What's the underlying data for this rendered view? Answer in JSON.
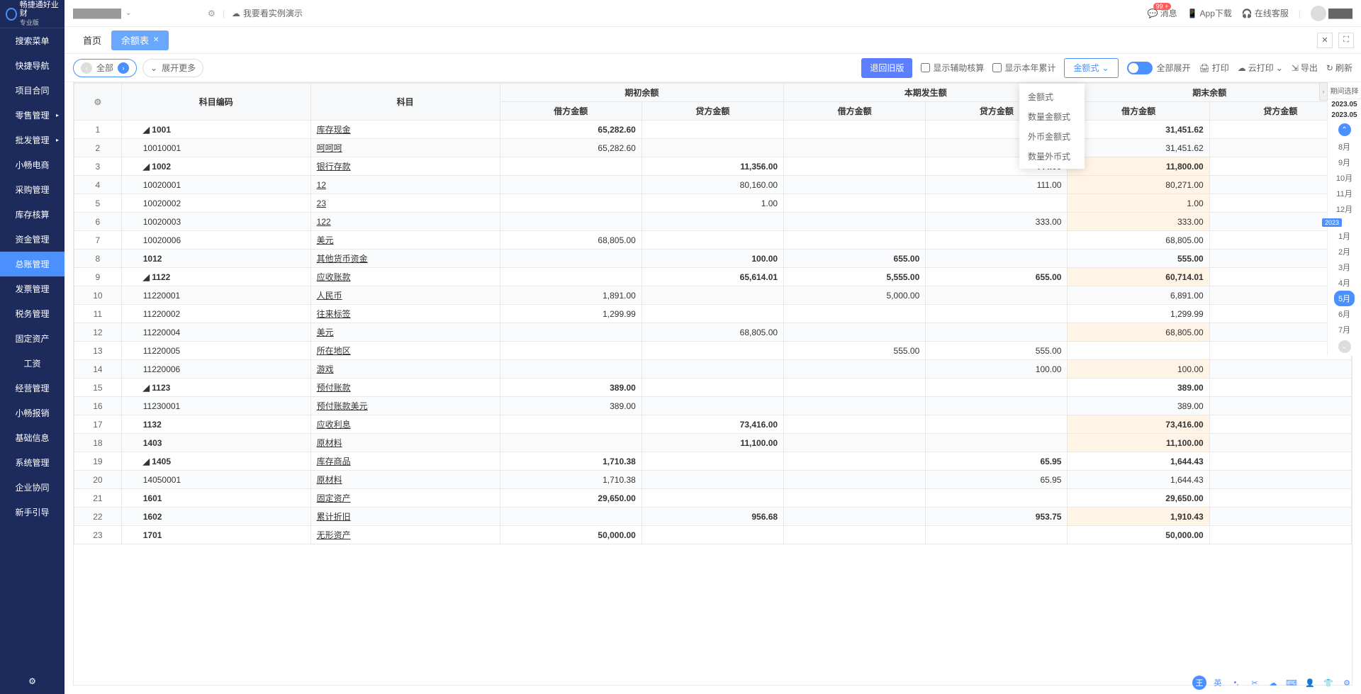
{
  "brand": {
    "name": "畅捷通好业财",
    "edition": "专业版"
  },
  "sidebar": {
    "items": [
      {
        "label": "搜索菜单"
      },
      {
        "label": "快捷导航"
      },
      {
        "label": "项目合同"
      },
      {
        "label": "零售管理",
        "caret": true
      },
      {
        "label": "批发管理",
        "caret": true
      },
      {
        "label": "小畅电商"
      },
      {
        "label": "采购管理"
      },
      {
        "label": "库存核算"
      },
      {
        "label": "资金管理"
      },
      {
        "label": "总账管理",
        "active": true
      },
      {
        "label": "发票管理"
      },
      {
        "label": "税务管理"
      },
      {
        "label": "固定资产"
      },
      {
        "label": "工资"
      },
      {
        "label": "经营管理"
      },
      {
        "label": "小畅报销"
      },
      {
        "label": "基础信息"
      },
      {
        "label": "系统管理"
      },
      {
        "label": "企业协同"
      },
      {
        "label": "新手引导"
      }
    ]
  },
  "topbar": {
    "company": "████████",
    "demo": "我要看实例演示",
    "msg": "消息",
    "msg_badge": "99 +",
    "download": "App下载",
    "service": "在线客服",
    "user": "████"
  },
  "tabs": {
    "home": "首页",
    "active": "余额表"
  },
  "toolbar": {
    "filter": "全部",
    "expand": "展开更多",
    "back": "退回旧版",
    "chk1": "显示辅助核算",
    "chk2": "显示本年累计",
    "mode": "金额式",
    "expand_all": "全部展开",
    "print": "打印",
    "cloud_print": "云打印",
    "export": "导出",
    "refresh": "刷新"
  },
  "dropdown": {
    "items": [
      "金额式",
      "数量金额式",
      "外币金额式",
      "数量外币式"
    ]
  },
  "period": {
    "title": "期间选择",
    "from": "2023.05",
    "to": "2023.05",
    "year_label": "2023",
    "months": [
      "8月",
      "9月",
      "10月",
      "11月",
      "12月",
      "1月",
      "2月",
      "3月",
      "4月",
      "5月",
      "6月",
      "7月"
    ],
    "active_month": "5月"
  },
  "table": {
    "headers": {
      "code": "科目编码",
      "name": "科目",
      "g1": "期初余额",
      "g2": "本期发生额",
      "g3": "期末余额",
      "debit": "借方金额",
      "credit": "贷方金额"
    },
    "rows": [
      {
        "i": 1,
        "code": "1001",
        "name": "库存现金",
        "exp": true,
        "bold": true,
        "d1": "65,282.60",
        "c2": "33,830.98",
        "d3": "31,451.62"
      },
      {
        "i": 2,
        "code": "10010001",
        "name": "呵呵呵",
        "d1": "65,282.60",
        "c2": "33,830.98",
        "d3": "31,451.62"
      },
      {
        "i": 3,
        "code": "1002",
        "name": "银行存款",
        "exp": true,
        "bold": true,
        "c1": "11,356.00",
        "c2": "444.00",
        "d3h": "11,800.00"
      },
      {
        "i": 4,
        "code": "10020001",
        "name": "12",
        "c1": "80,160.00",
        "c2": "111.00",
        "d3h": "80,271.00"
      },
      {
        "i": 5,
        "code": "10020002",
        "name": "23",
        "c1": "1.00",
        "d3h": "1.00"
      },
      {
        "i": 6,
        "code": "10020003",
        "name": "122",
        "c2": "333.00",
        "d3h": "333.00"
      },
      {
        "i": 7,
        "code": "10020006",
        "name": "美元",
        "d1": "68,805.00",
        "d3": "68,805.00"
      },
      {
        "i": 8,
        "code": "1012",
        "name": "其他货币资金",
        "bold": true,
        "c1": "100.00",
        "d2": "655.00",
        "d3": "555.00"
      },
      {
        "i": 9,
        "code": "1122",
        "name": "应收账款",
        "exp": true,
        "bold": true,
        "c1": "65,614.01",
        "d2": "5,555.00",
        "c2": "655.00",
        "d3h": "60,714.01"
      },
      {
        "i": 10,
        "code": "11220001",
        "name": "人民币",
        "d1": "1,891.00",
        "d2": "5,000.00",
        "d3": "6,891.00"
      },
      {
        "i": 11,
        "code": "11220002",
        "name": "往来标签",
        "d1": "1,299.99",
        "d3": "1,299.99"
      },
      {
        "i": 12,
        "code": "11220004",
        "name": "美元",
        "c1": "68,805.00",
        "d3h": "68,805.00"
      },
      {
        "i": 13,
        "code": "11220005",
        "name": "所在地区",
        "d2": "555.00",
        "c2": "555.00"
      },
      {
        "i": 14,
        "code": "11220006",
        "name": "游戏",
        "c2": "100.00",
        "d3h": "100.00"
      },
      {
        "i": 15,
        "code": "1123",
        "name": "预付账款",
        "exp": true,
        "bold": true,
        "d1": "389.00",
        "d3": "389.00"
      },
      {
        "i": 16,
        "code": "11230001",
        "name": "预付账款美元",
        "d1": "389.00",
        "d3": "389.00"
      },
      {
        "i": 17,
        "code": "1132",
        "name": "应收利息",
        "bold": true,
        "c1": "73,416.00",
        "d3h": "73,416.00"
      },
      {
        "i": 18,
        "code": "1403",
        "name": "原材料",
        "bold": true,
        "c1": "11,100.00",
        "d3h": "11,100.00"
      },
      {
        "i": 19,
        "code": "1405",
        "name": "库存商品",
        "exp": true,
        "bold": true,
        "d1": "1,710.38",
        "c2": "65.95",
        "d3": "1,644.43"
      },
      {
        "i": 20,
        "code": "14050001",
        "name": "原材料",
        "d1": "1,710.38",
        "c2": "65.95",
        "d3": "1,644.43"
      },
      {
        "i": 21,
        "code": "1601",
        "name": "固定资产",
        "bold": true,
        "d1": "29,650.00",
        "d3": "29,650.00"
      },
      {
        "i": 22,
        "code": "1602",
        "name": "累计折旧",
        "bold": true,
        "c1": "956.68",
        "c2": "953.75",
        "d3h": "1,910.43"
      },
      {
        "i": 23,
        "code": "1701",
        "name": "无形资产",
        "bold": true,
        "d1": "50,000.00",
        "d3": "50,000.00"
      }
    ]
  },
  "colors": {
    "primary": "#4a90ff",
    "sidebar": "#1d2b5c",
    "highlight": "#fff4e6"
  }
}
